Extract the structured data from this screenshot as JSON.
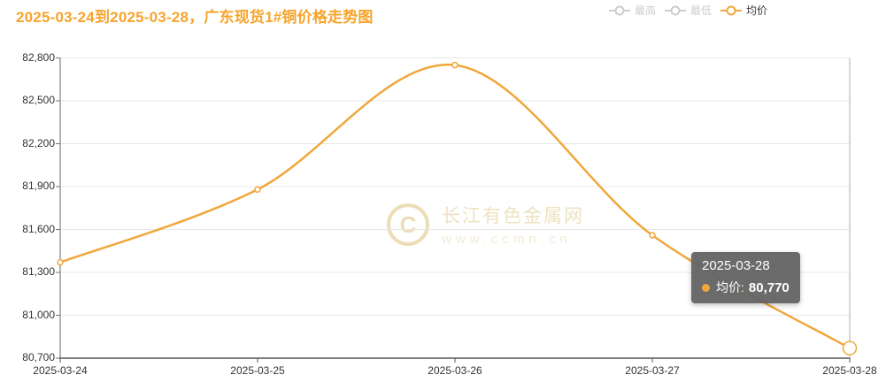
{
  "header": {
    "title": "2025-03-24到2025-03-28，广东现货1#铜价格走势图"
  },
  "legend": {
    "items": [
      {
        "label": "最高",
        "active": false
      },
      {
        "label": "最低",
        "active": false
      },
      {
        "label": "均价",
        "active": true
      }
    ]
  },
  "chart_data": {
    "type": "line",
    "title": "2025-03-24到2025-03-28，广东现货1#铜价格走势图",
    "categories": [
      "2025-03-24",
      "2025-03-25",
      "2025-03-26",
      "2025-03-27",
      "2025-03-28"
    ],
    "series": [
      {
        "name": "最高",
        "visible": false
      },
      {
        "name": "最低",
        "visible": false
      },
      {
        "name": "均价",
        "visible": true,
        "values": [
          81370,
          81880,
          82750,
          81560,
          80770
        ]
      }
    ],
    "xlabel": "",
    "ylabel": "",
    "ylim": [
      80700,
      82800
    ],
    "y_ticks": [
      80700,
      81000,
      81300,
      81600,
      81900,
      82200,
      82500,
      82800
    ],
    "y_tick_labels": [
      "80,700",
      "81,000",
      "81,300",
      "81,600",
      "81,900",
      "82,200",
      "82,500",
      "82,800"
    ],
    "grid": true,
    "smooth": true,
    "legend_position": "top-right",
    "highlighted_category": "2025-03-28",
    "line_color": "#F0A73C"
  },
  "tooltip": {
    "date": "2025-03-28",
    "label": "均价:",
    "value": "80,770"
  },
  "watermark": {
    "logo_letter": "C",
    "name": "长江有色金属网",
    "url": "www.ccmn.cn"
  },
  "colors": {
    "title": "#F6A42D",
    "line": "#F0A73C",
    "legend_inactive": "#CDCDCD",
    "legend_active_text": "#3A3A3A",
    "gridline": "#E8E8E8",
    "y_axis_line": "#9A9A9A",
    "x_axis_line": "#555555",
    "axis_pointer": "#C8C8C8",
    "axis_label": "#333333",
    "tooltip_bg": "#636363",
    "watermark": "#EBDDB6"
  }
}
